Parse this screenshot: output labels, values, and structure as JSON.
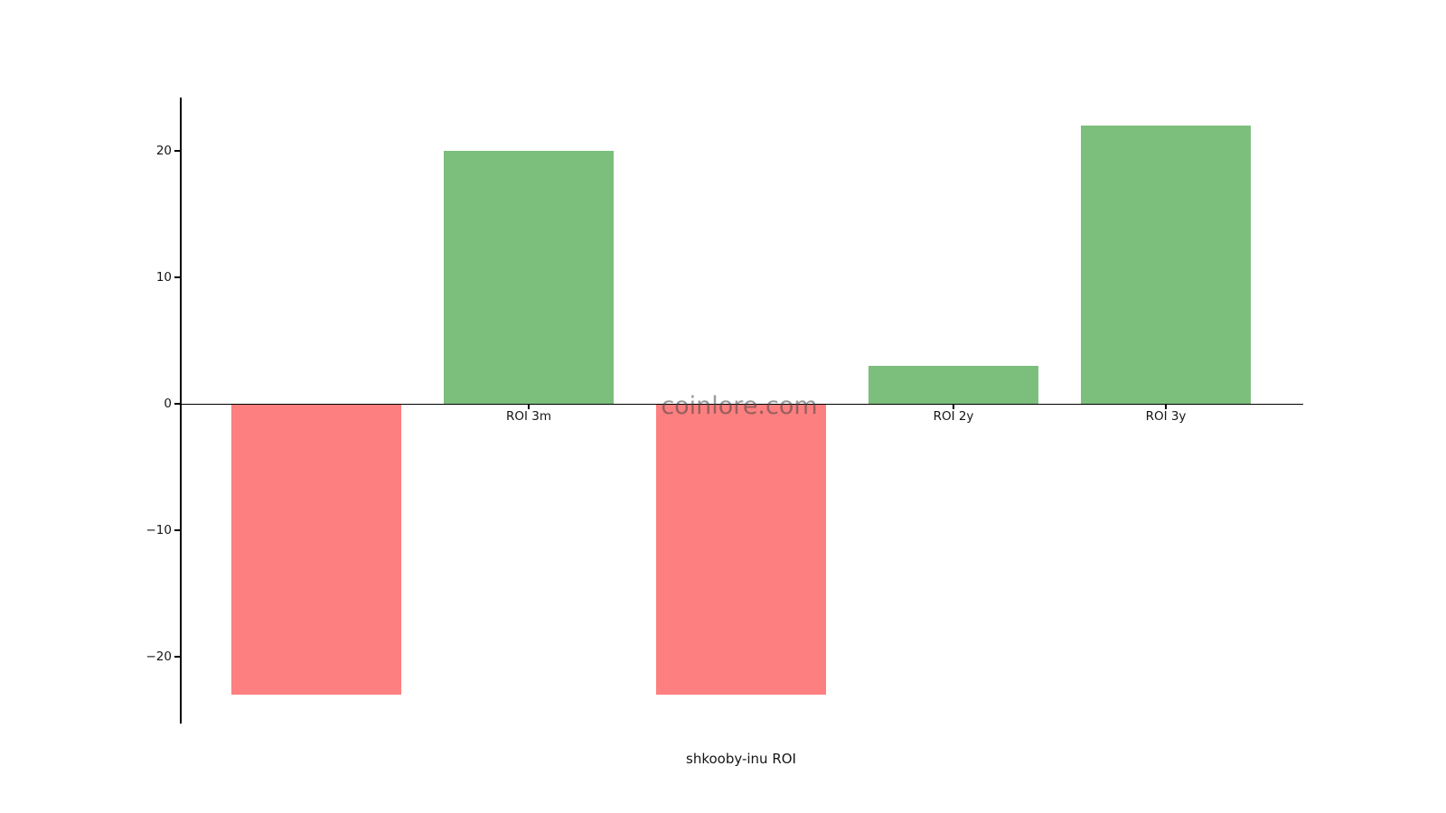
{
  "chart_data": {
    "type": "bar",
    "title": "",
    "xlabel": "shkooby-inu ROI",
    "ylabel": "",
    "categories": [
      "",
      "ROI 3m",
      "",
      "ROI 2y",
      "ROI 3y"
    ],
    "values": [
      -23,
      20,
      -23,
      3,
      22
    ],
    "yticks": [
      {
        "value": 20,
        "label": "20"
      },
      {
        "value": 10,
        "label": "10"
      },
      {
        "value": 0,
        "label": "0"
      },
      {
        "value": -10,
        "label": "−10"
      },
      {
        "value": -20,
        "label": "−20"
      }
    ],
    "ylim": [
      -25.25,
      24.25
    ],
    "grid": false,
    "legend": "none",
    "background": "#ffffff",
    "colors": {
      "positive": "#7cbf7c",
      "negative": "#fd7f7f",
      "axis": "#000000",
      "tick_text": "#151515",
      "watermark_text": "rgba(70,70,70,0.55)"
    },
    "watermark": "coinlore.com"
  }
}
